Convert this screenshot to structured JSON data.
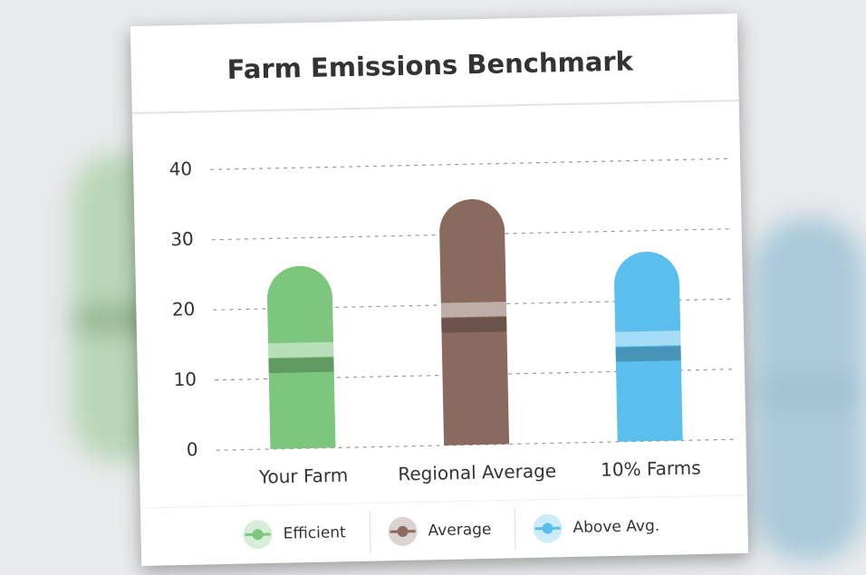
{
  "chart_data": {
    "type": "bar",
    "title": "Farm Emissions Benchmark",
    "categories": [
      "Your Farm",
      "Regional Average",
      "10% Farms"
    ],
    "values": [
      26,
      35,
      27
    ],
    "colors": [
      "#7dc67e",
      "#8a6a5f",
      "#5bbfee"
    ],
    "legend": [
      "Efficient",
      "Average",
      "Above Avg."
    ],
    "ylim": [
      0,
      40
    ],
    "yticks": [
      0,
      10,
      20,
      30,
      40
    ],
    "grid": true
  }
}
